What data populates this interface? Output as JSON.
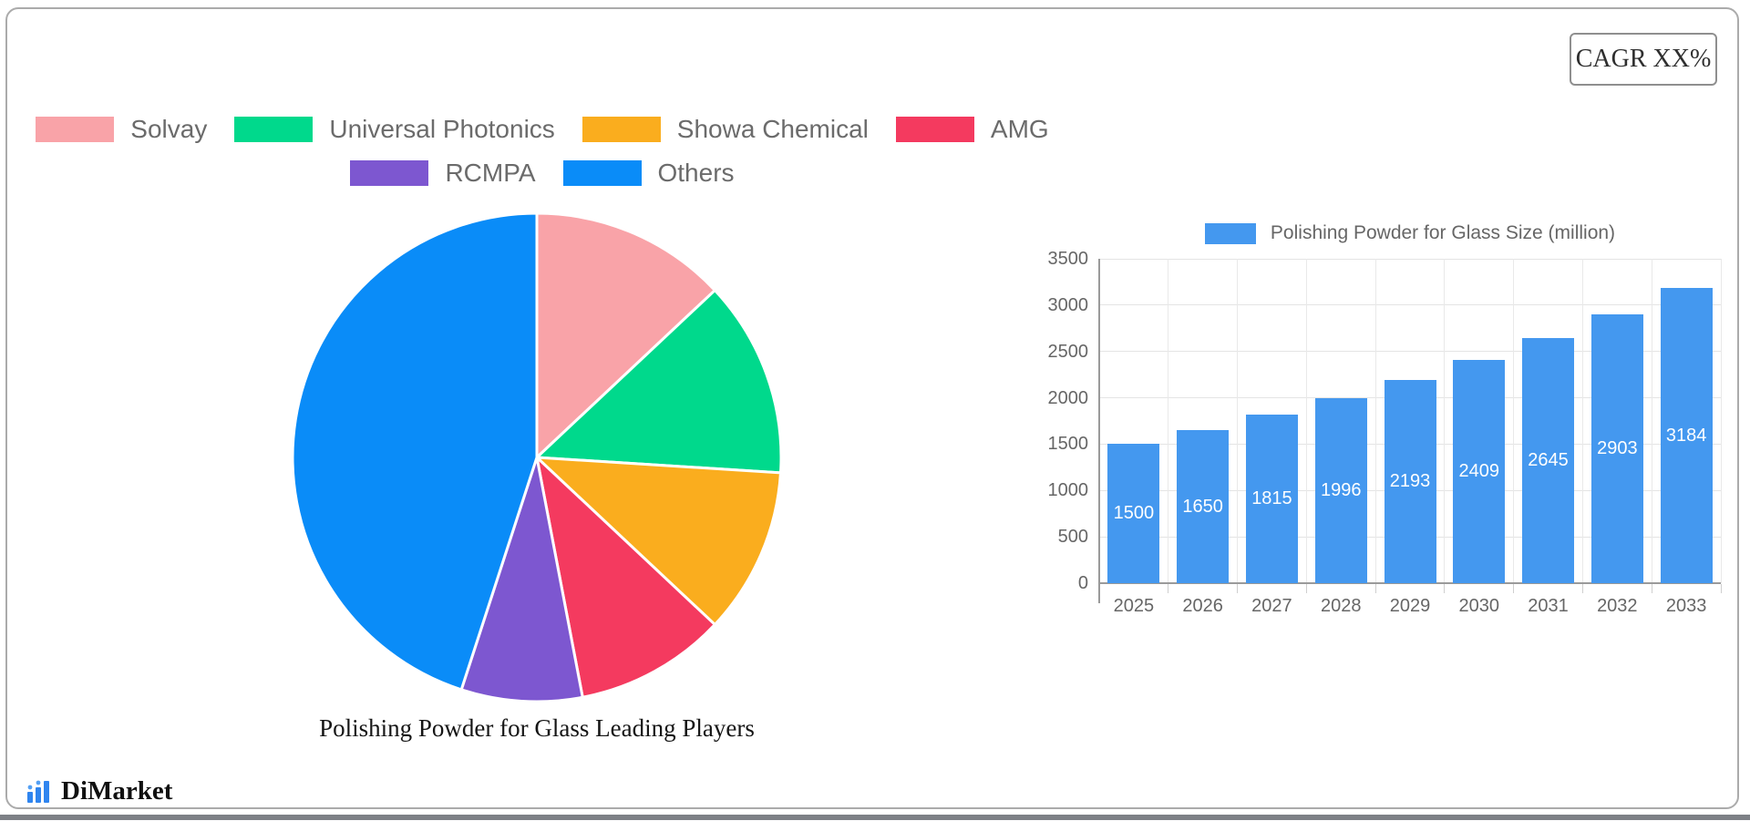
{
  "cagr_box": {
    "label": "CAGR XX%"
  },
  "logo": {
    "text": "DiMarket"
  },
  "colors": {
    "pie_palette": [
      "#f9a3a8",
      "#00d98c",
      "#faad1e",
      "#f43a5f",
      "#7d57d0",
      "#0a8cf8"
    ],
    "bar_color": "#4498ef",
    "legend_text": "#6b6b6b",
    "axis_text": "#666666"
  },
  "chart_data": [
    {
      "type": "pie",
      "title": "Polishing Powder for Glass Leading Players",
      "labels": [
        "Solvay",
        "Universal Photonics",
        "Showa Chemical",
        "AMG",
        "RCMPA",
        "Others"
      ],
      "values_percent": [
        13,
        13,
        11,
        10,
        8,
        45
      ],
      "colors": [
        "#f9a3a8",
        "#00d98c",
        "#faad1e",
        "#f43a5f",
        "#7d57d0",
        "#0a8cf8"
      ],
      "start_angle": "12-o-clock",
      "direction": "clockwise",
      "legend_position": "top",
      "legend_rows": [
        4,
        2
      ]
    },
    {
      "type": "bar",
      "series_label": "Polishing Powder for Glass Size (million)",
      "categories": [
        "2025",
        "2026",
        "2027",
        "2028",
        "2029",
        "2030",
        "2031",
        "2032",
        "2033"
      ],
      "values": [
        1500,
        1650,
        1815,
        1996,
        2193,
        2409,
        2645,
        2903,
        3184
      ],
      "bar_color": "#4498ef",
      "value_label_color": "#ffffff",
      "y_ticks": [
        0,
        500,
        1000,
        1500,
        2000,
        2500,
        3000,
        3500
      ],
      "ylim": [
        0,
        3500
      ],
      "grid": true,
      "legend_position": "top"
    }
  ]
}
